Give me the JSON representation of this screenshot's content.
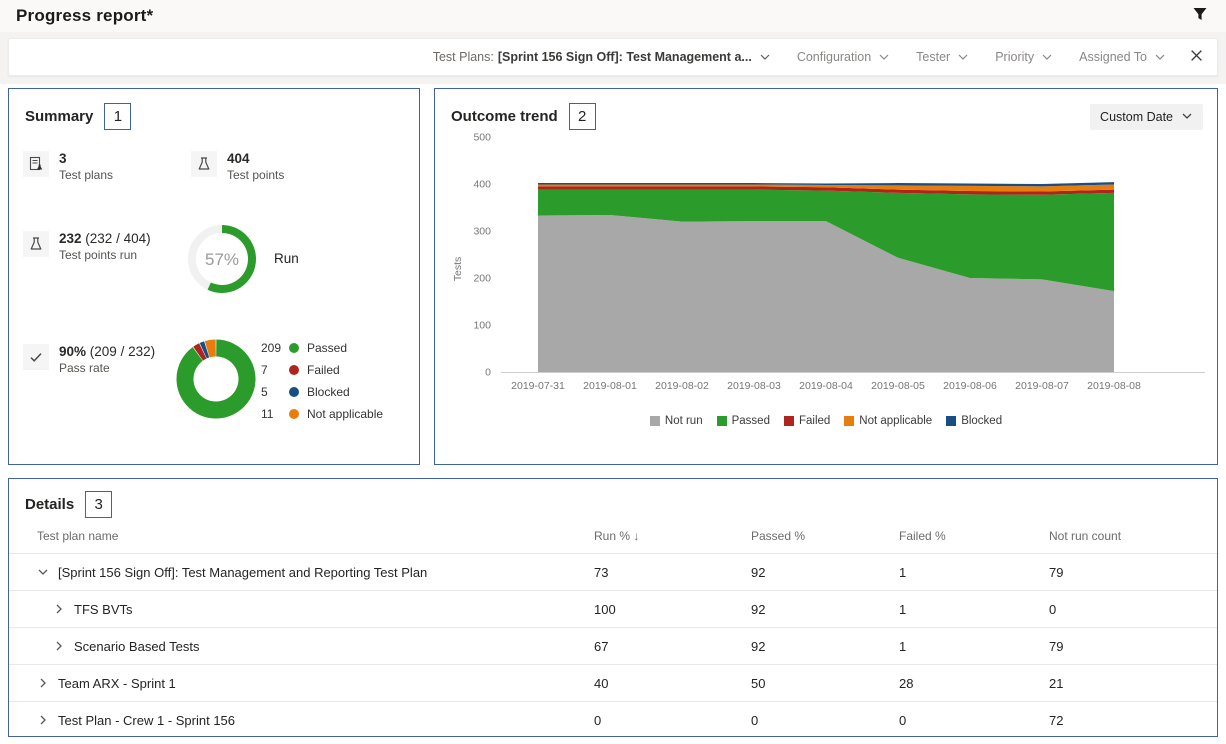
{
  "header": {
    "title": "Progress report*"
  },
  "filter_bar": {
    "test_plans_label": "Test Plans:",
    "test_plans_value": "[Sprint 156 Sign Off]: Test Management a...",
    "dropdowns": [
      "Configuration",
      "Tester",
      "Priority",
      "Assigned To"
    ]
  },
  "summary": {
    "title": "Summary",
    "badge": "1",
    "stats": [
      {
        "value": "3",
        "label": "Test plans"
      },
      {
        "value": "404",
        "label": "Test points"
      },
      {
        "value": "232",
        "suffix": "(232 / 404)",
        "label": "Test points run"
      },
      {
        "value": "90%",
        "suffix": "(209 / 232)",
        "label": "Pass rate"
      }
    ],
    "run_label": "Run"
  },
  "outcome_trend": {
    "title": "Outcome trend",
    "badge": "2",
    "date_range_button": "Custom Date"
  },
  "details": {
    "title": "Details",
    "badge": "3",
    "columns": [
      "Test plan name",
      "Run % ↓",
      "Passed %",
      "Failed %",
      "Not run count"
    ],
    "rows": [
      {
        "name": "[Sprint 156 Sign Off]: Test Management and Reporting Test Plan",
        "level": 0,
        "expanded": true,
        "run": "73",
        "passed": "92",
        "failed": "1",
        "notrun": "79"
      },
      {
        "name": "TFS BVTs",
        "level": 1,
        "expanded": false,
        "run": "100",
        "passed": "92",
        "failed": "1",
        "notrun": "0"
      },
      {
        "name": "Scenario Based Tests",
        "level": 1,
        "expanded": false,
        "run": "67",
        "passed": "92",
        "failed": "1",
        "notrun": "79"
      },
      {
        "name": "Team ARX - Sprint 1",
        "level": 0,
        "expanded": false,
        "run": "40",
        "passed": "50",
        "failed": "28",
        "notrun": "21"
      },
      {
        "name": "Test Plan - Crew 1 - Sprint 156",
        "level": 0,
        "expanded": false,
        "run": "0",
        "passed": "0",
        "failed": "0",
        "notrun": "72"
      }
    ]
  },
  "colors": {
    "card_border": "#3f63a2",
    "not_run": "#a8a8a8",
    "passed": "#2b9c2b",
    "failed": "#ae241f",
    "not_applicable": "#e87d0d",
    "blocked": "#174f85"
  },
  "chart_data": [
    {
      "type": "area",
      "stacked": true,
      "title": "Outcome trend",
      "xlabel": "",
      "ylabel": "Tests",
      "ylim": [
        0,
        500
      ],
      "grid": false,
      "legend_position": "bottom",
      "x": [
        "2019-07-31",
        "2019-08-01",
        "2019-08-02",
        "2019-08-03",
        "2019-08-04",
        "2019-08-05",
        "2019-08-06",
        "2019-08-07",
        "2019-08-08"
      ],
      "series": [
        {
          "name": "Not run",
          "color": "#a8a8a8",
          "values": [
            333,
            334,
            320,
            321,
            321,
            243,
            200,
            197,
            172
          ]
        },
        {
          "name": "Passed",
          "color": "#2b9c2b",
          "values": [
            55,
            54,
            68,
            67,
            65,
            138,
            178,
            180,
            209
          ]
        },
        {
          "name": "Failed",
          "color": "#ae241f",
          "values": [
            7,
            7,
            7,
            7,
            7,
            7,
            7,
            7,
            7
          ]
        },
        {
          "name": "Not applicable",
          "color": "#e87d0d",
          "values": [
            4,
            4,
            4,
            4,
            5,
            9,
            11,
            11,
            11
          ]
        },
        {
          "name": "Blocked",
          "color": "#174f85",
          "values": [
            3,
            3,
            3,
            3,
            3,
            5,
            5,
            5,
            5
          ]
        }
      ]
    },
    {
      "type": "donut",
      "name": "run-rate",
      "percent": 57,
      "display": "57%",
      "label": "Run",
      "color": "#2b9c2b",
      "track_color": "#f1f1f1"
    },
    {
      "type": "donut",
      "name": "outcome",
      "segments": [
        {
          "label": "Passed",
          "value": 209,
          "color": "#2b9c2b"
        },
        {
          "label": "Failed",
          "value": 7,
          "color": "#ae241f"
        },
        {
          "label": "Blocked",
          "value": 5,
          "color": "#174f85"
        },
        {
          "label": "Not applicable",
          "value": 11,
          "color": "#e87d0d"
        }
      ]
    }
  ]
}
